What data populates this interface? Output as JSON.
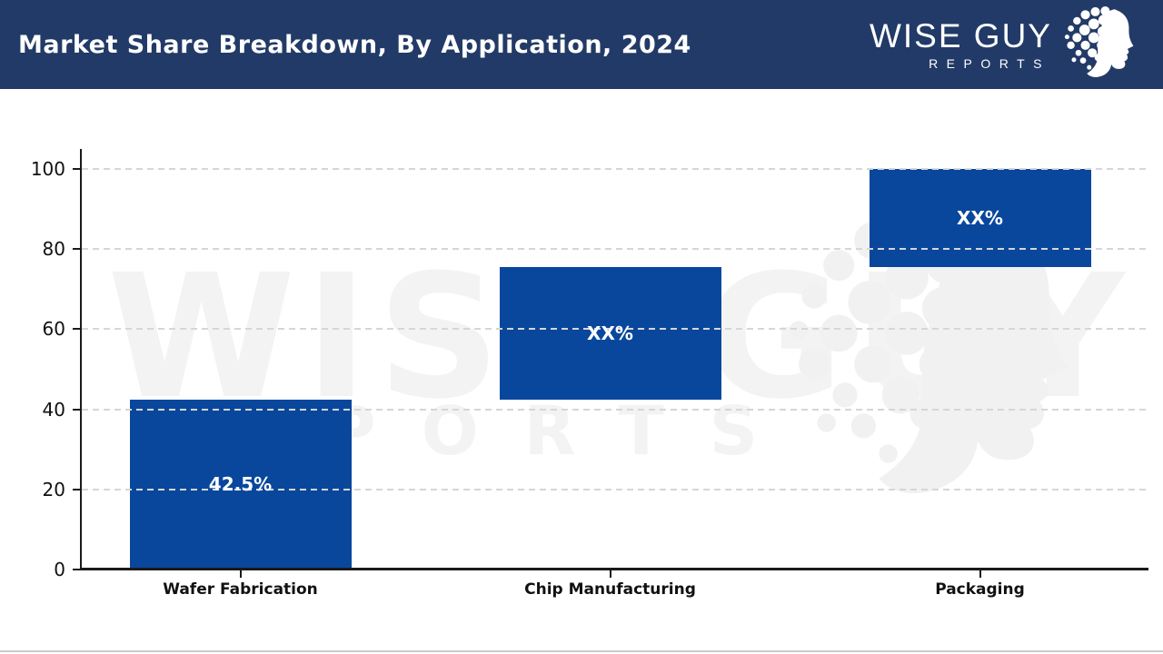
{
  "header": {
    "title": "Market Share Breakdown, By Application, 2024",
    "logo": {
      "line1": "WISE GUY",
      "line2": "REPORTS"
    }
  },
  "watermark": {
    "line1": "WISE GUY",
    "line2": "REPORTS"
  },
  "colors": {
    "header_bg": "#223a67",
    "bar": "#09479d",
    "grid": "#d6d6d6",
    "axis": "#1a1a1a",
    "bar_label": "#ffffff",
    "watermark": "#f3f3f3"
  },
  "chart_data": {
    "type": "bar",
    "subtype": "waterfall",
    "title": "Market Share Breakdown, By Application, 2024",
    "categories": [
      "Wafer Fabrication",
      "Chip Manufacturing",
      "Packaging"
    ],
    "segments": [
      {
        "category": "Wafer Fabrication",
        "start": 0,
        "end": 42.5,
        "label": "42.5%"
      },
      {
        "category": "Chip Manufacturing",
        "start": 42.5,
        "end": 75.5,
        "label": "XX%"
      },
      {
        "category": "Packaging",
        "start": 75.5,
        "end": 100,
        "label": "XX%"
      }
    ],
    "yticks": [
      0,
      20,
      40,
      60,
      80,
      100
    ],
    "ylim": [
      0,
      100
    ],
    "xlabel": "",
    "ylabel": "",
    "grid": "horizontal-dashed",
    "grid_above_bars": true,
    "legend": "none",
    "bar_color": "#09479d",
    "bar_label_color": "#ffffff"
  }
}
